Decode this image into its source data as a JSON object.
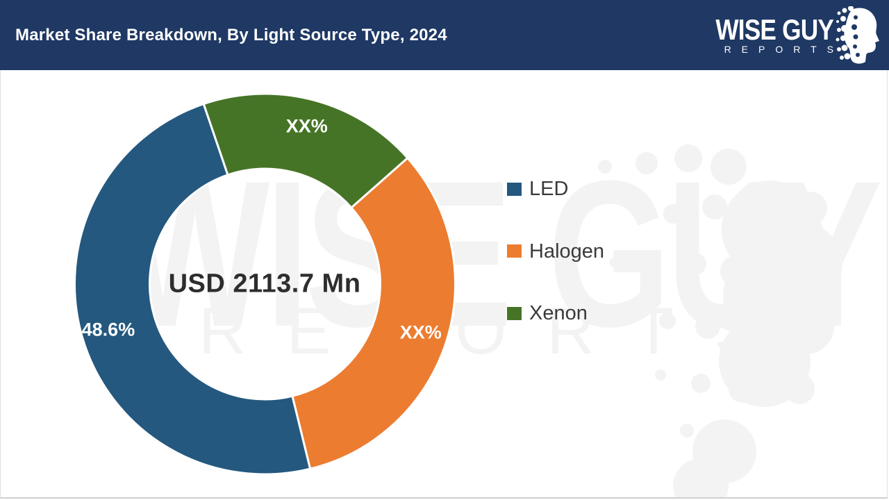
{
  "header": {
    "title": "Market Share Breakdown, By Light Source Type, 2024",
    "logo": {
      "line1": "WISE GUY",
      "line2": "REPORTS"
    }
  },
  "watermark": {
    "line1": "WISE GUY",
    "line2": "REPORTS"
  },
  "chart_data": {
    "type": "pie",
    "subtype": "donut",
    "center_label": "USD 2113.7 Mn",
    "start_angle_deg": 108.8,
    "direction": "counterclockwise",
    "legend_position": "right",
    "segments": [
      {
        "label": "LED",
        "value_pct": 48.6,
        "slice_label": "48.6%",
        "color": "#24587e"
      },
      {
        "label": "Halogen",
        "value_pct": 32.7,
        "slice_label": "XX%",
        "color": "#ec7c30"
      },
      {
        "label": "Xenon",
        "value_pct": 18.7,
        "slice_label": "XX%",
        "color": "#467426"
      }
    ]
  },
  "colors": {
    "navy": "#1f3864",
    "watermark": "#f3f3f3",
    "center_text": "#2d2d2d",
    "legend_text": "#3a3a3a",
    "border": "#cfcfcf"
  }
}
